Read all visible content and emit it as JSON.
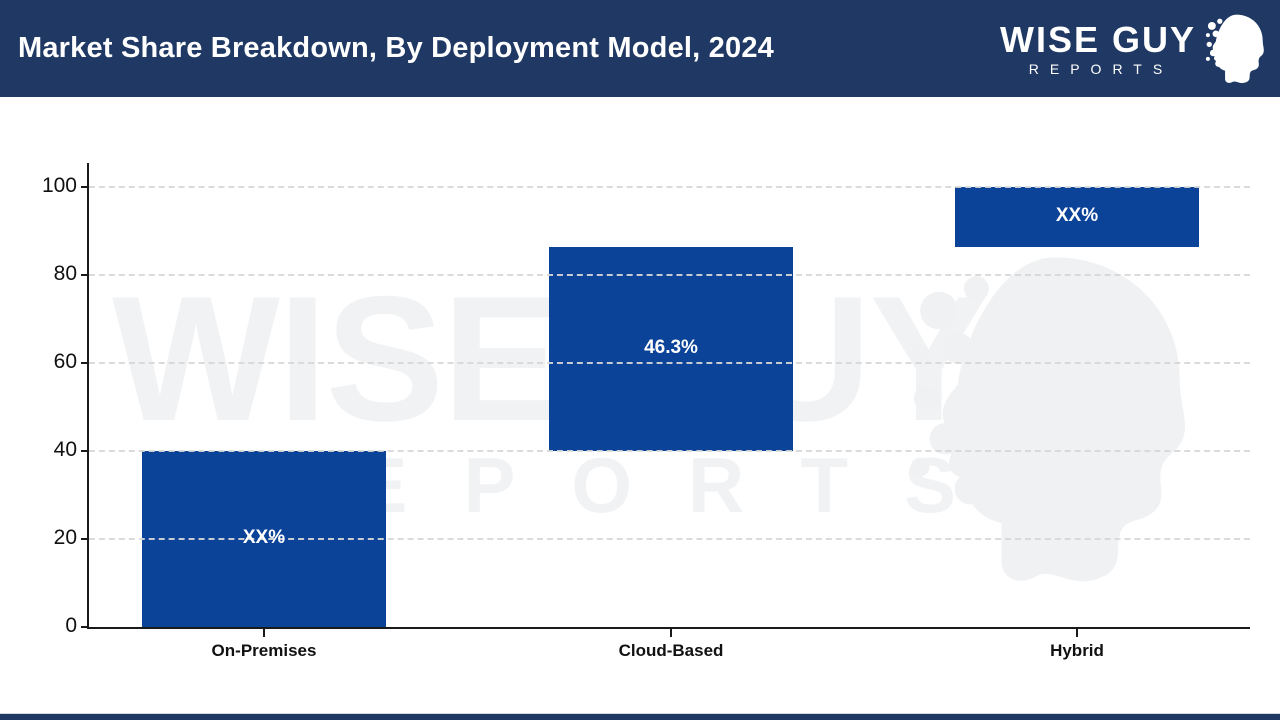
{
  "header": {
    "title": "Market Share Breakdown, By Deployment Model, 2024",
    "logo": {
      "line1": "WISE GUY",
      "line2": "REPORTS"
    }
  },
  "watermark": {
    "line1": "WISE GUY",
    "line2": "REPORTS"
  },
  "chart_data": {
    "type": "bar",
    "subtype": "floating-waterfall-segments",
    "title": "Market Share Breakdown, By Deployment Model, 2024",
    "categories": [
      "On-Premises",
      "Cloud-Based",
      "Hybrid"
    ],
    "segments": [
      {
        "category": "On-Premises",
        "start": 0,
        "end": 40,
        "label": "XX%"
      },
      {
        "category": "Cloud-Based",
        "start": 40,
        "end": 86.3,
        "label": "46.3%",
        "value": 46.3
      },
      {
        "category": "Hybrid",
        "start": 86.3,
        "end": 100,
        "label": "XX%"
      }
    ],
    "yticks": [
      0,
      20,
      40,
      60,
      80,
      100
    ],
    "ylim": [
      0,
      105
    ],
    "xlabel": "",
    "ylabel": "",
    "grid": "dashed-horizontal",
    "legend": "none",
    "bar_color": "#0b4398",
    "bar_label_color": "#ffffff"
  },
  "colors": {
    "navy": "#1f3864",
    "bar_blue": "#0b4398",
    "gridline": "#d8d8d8",
    "axis": "#1a1a1a",
    "watermark": "#f1f2f4",
    "background": "#ffffff"
  }
}
